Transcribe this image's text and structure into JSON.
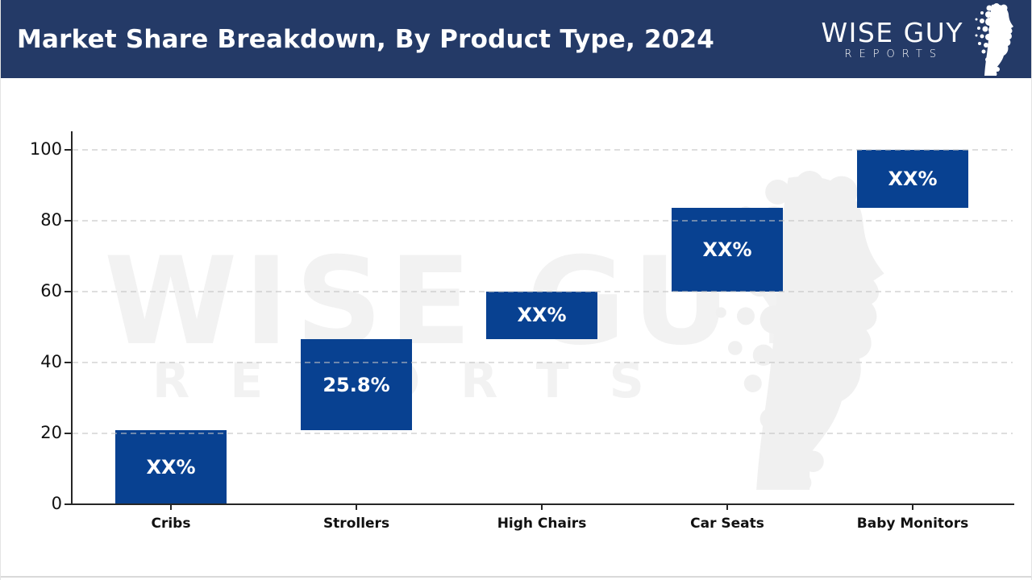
{
  "header": {
    "title": "Market Share Breakdown, By Product Type, 2024",
    "logo": {
      "name": "WISE GUY",
      "subtitle": "REPORTS"
    }
  },
  "watermark": {
    "line1": "WISE GUY",
    "line2": "REPORTS"
  },
  "chart_data": {
    "type": "bar",
    "subtype": "waterfall",
    "title": "Market Share Breakdown, By Product Type, 2024",
    "categories": [
      "Cribs",
      "Strollers",
      "High Chairs",
      "Car Seats",
      "Baby Monitors"
    ],
    "bars": [
      {
        "category": "Cribs",
        "start": 0,
        "end": 20.8,
        "value_label": "XX%"
      },
      {
        "category": "Strollers",
        "start": 20.8,
        "end": 46.6,
        "value_label": "25.8%"
      },
      {
        "category": "High Chairs",
        "start": 46.6,
        "end": 60.1,
        "value_label": "XX%"
      },
      {
        "category": "Car Seats",
        "start": 60.1,
        "end": 83.7,
        "value_label": "XX%"
      },
      {
        "category": "Baby Monitors",
        "start": 83.7,
        "end": 100,
        "value_label": "XX%"
      }
    ],
    "yticks": [
      0,
      20,
      40,
      60,
      80,
      100
    ],
    "ylim": [
      0,
      105
    ],
    "xlabel": "",
    "ylabel": "",
    "grid": "horizontal dashed, drawn over bars",
    "legend": "none",
    "bar_color": "#084191",
    "bar_label_color": "#ffffff"
  }
}
